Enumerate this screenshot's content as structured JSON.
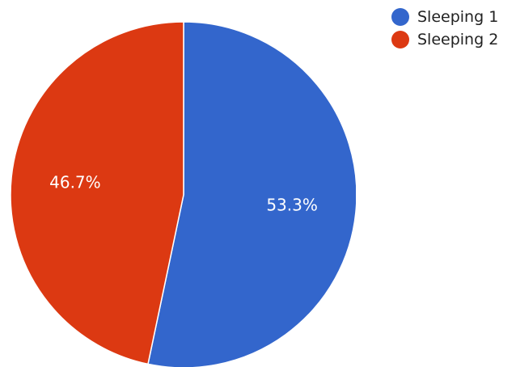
{
  "chart_data": {
    "type": "pie",
    "title": "",
    "categories": [
      "Sleeping 1",
      "Sleeping 2"
    ],
    "values": [
      53.3,
      46.7
    ],
    "value_labels": [
      "53.3%",
      "46.7%"
    ],
    "colors": [
      "#3366cc",
      "#dc3912"
    ],
    "start_angle": "12 o'clock",
    "direction": "clockwise",
    "legend_position": "top-right"
  },
  "legend": {
    "items": [
      {
        "label": "Sleeping 1",
        "color": "#3366cc"
      },
      {
        "label": "Sleeping 2",
        "color": "#dc3912"
      }
    ]
  }
}
